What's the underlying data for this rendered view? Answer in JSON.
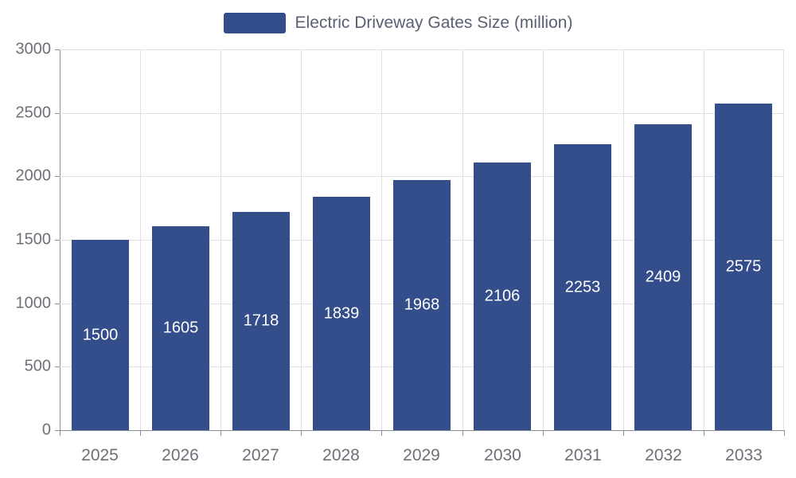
{
  "chart_data": {
    "type": "bar",
    "title": "Electric Driveway Gates Size (million)",
    "categories": [
      "2025",
      "2026",
      "2027",
      "2028",
      "2029",
      "2030",
      "2031",
      "2032",
      "2033"
    ],
    "values": [
      1500,
      1605,
      1718,
      1839,
      1968,
      2106,
      2253,
      2409,
      2575
    ],
    "xlabel": "",
    "ylabel": "",
    "ylim": [
      0,
      3000
    ],
    "yticks": [
      0,
      500,
      1000,
      1500,
      2000,
      2500,
      3000
    ],
    "grid": true,
    "legend_position": "top-center",
    "value_labels": "inside-center",
    "colors": {
      "bar": "#344d8b",
      "bar_label": "#ffffff",
      "legend_text": "#5a5f72",
      "axis": "#8a8f99",
      "grid": "#e0e0e6",
      "tick_label": "#6e7079"
    }
  }
}
